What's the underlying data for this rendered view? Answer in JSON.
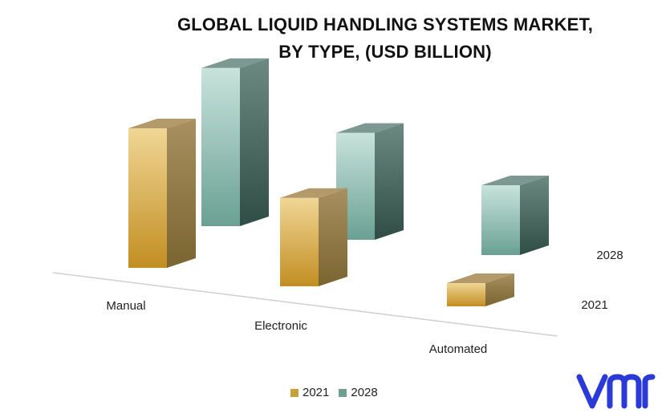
{
  "chart_data": {
    "type": "bar",
    "title_line1": "GLOBAL LIQUID HANDLING SYSTEMS MARKET,",
    "title_line2": "BY TYPE, (USD BILLION)",
    "categories": [
      "Manual",
      "Electronic",
      "Automated"
    ],
    "series": [
      {
        "name": "2021",
        "values": [
          3.0,
          1.9,
          0.5
        ],
        "color": "#c9a03e"
      },
      {
        "name": "2028",
        "values": [
          3.4,
          2.3,
          1.5
        ],
        "color": "#6f9e95"
      }
    ],
    "depth_labels": [
      "2028",
      "2021"
    ],
    "legend_position": "bottom",
    "grid": false
  },
  "logo": {
    "text": "vmr",
    "color": "#2b3ad6"
  }
}
